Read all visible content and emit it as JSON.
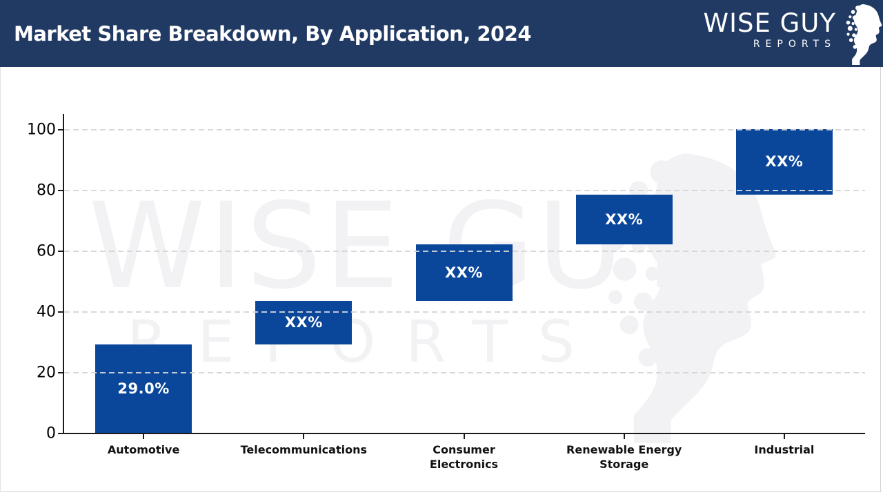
{
  "header": {
    "title": "Market Share Breakdown, By Application, 2024",
    "logo": {
      "line1": "WISE GUY",
      "line2": "REPORTS"
    }
  },
  "watermark": {
    "line1": "WISE GUY",
    "line2": "REPORTS"
  },
  "colors": {
    "header_bg": "#213a63",
    "bar_blue": "#0a479b",
    "grid_gray": "#d5d5d8",
    "axis_black": "#1a1a1a",
    "watermark_gray": "#f2f2f4"
  },
  "chart_data": {
    "type": "bar",
    "subtype": "waterfall",
    "title": "Market Share Breakdown, By Application, 2024",
    "xlabel": "",
    "ylabel": "",
    "ylim": [
      0,
      105
    ],
    "yticks": [
      0,
      20,
      40,
      60,
      80,
      100
    ],
    "grid": "horizontal-dashed",
    "legend": "none",
    "categories": [
      "Automotive",
      "Telecommunications",
      "Consumer\nElectronics",
      "Renewable Energy\nStorage",
      "Industrial"
    ],
    "bars": [
      {
        "category": "Automotive",
        "start": 0,
        "end": 29,
        "label": "29.0%"
      },
      {
        "category": "Telecommunications",
        "start": 29,
        "end": 43.5,
        "label": "XX%"
      },
      {
        "category": "Consumer Electronics",
        "start": 43.5,
        "end": 62,
        "label": "XX%"
      },
      {
        "category": "Renewable Energy Storage",
        "start": 62,
        "end": 78.5,
        "label": "XX%"
      },
      {
        "category": "Industrial",
        "start": 78.5,
        "end": 100,
        "label": "XX%"
      }
    ]
  }
}
